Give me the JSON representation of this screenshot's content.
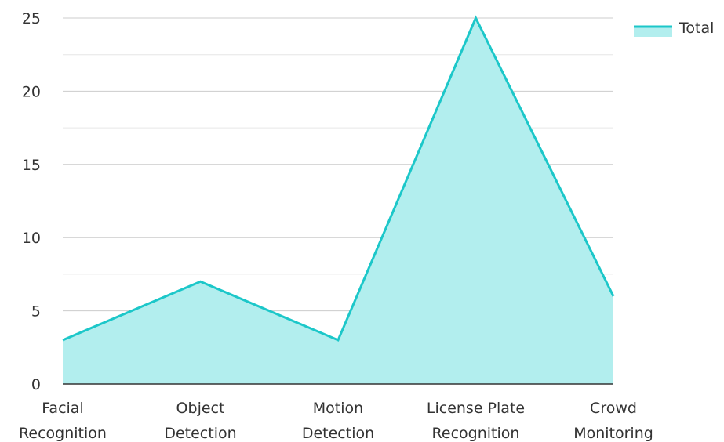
{
  "chart_data": {
    "type": "area",
    "categories": [
      "Facial Recognition",
      "Object Detection",
      "Motion Detection",
      "License Plate Recognition",
      "Crowd Monitoring"
    ],
    "category_lines": [
      [
        "Facial",
        "Recognition"
      ],
      [
        "Object",
        "Detection"
      ],
      [
        "Motion",
        "Detection"
      ],
      [
        "License Plate",
        "Recognition"
      ],
      [
        "Crowd",
        "Monitoring"
      ]
    ],
    "series": [
      {
        "name": "Total",
        "values": [
          3,
          7,
          3,
          25,
          6
        ],
        "color": "#1cc7c9",
        "fill": "#b2eeee"
      }
    ],
    "ylim": [
      0,
      25
    ],
    "yticks": [
      0,
      5,
      10,
      15,
      20,
      25
    ],
    "grid": true,
    "legend_position": "top-right"
  }
}
